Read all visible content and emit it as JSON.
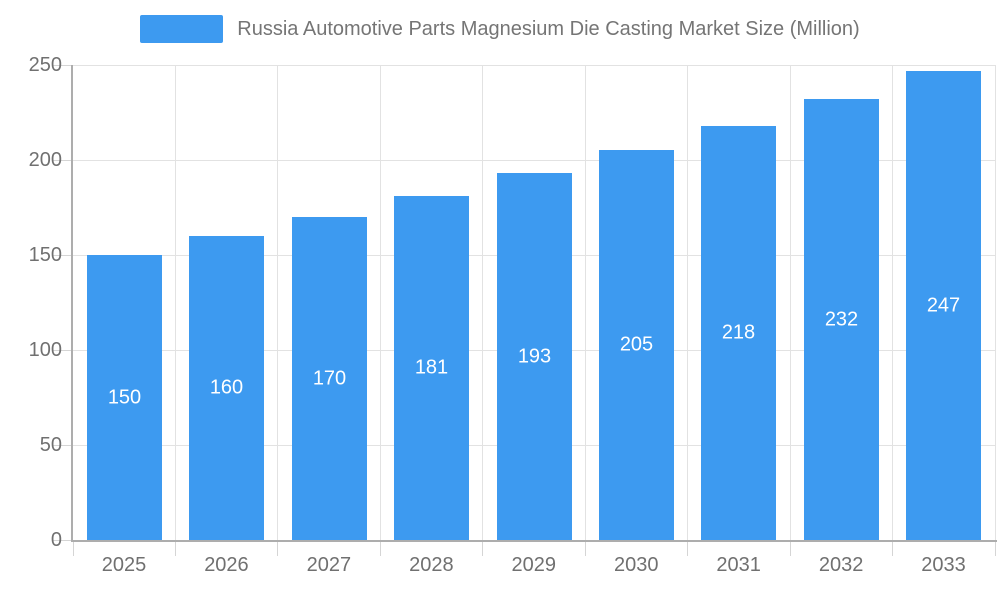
{
  "legend": {
    "swatch_icon": "legend-swatch",
    "label": "Russia Automotive Parts Magnesium Die Casting Market Size (Million)"
  },
  "colors": {
    "bar": "#3d9af0",
    "grid": "#e2e2e2",
    "axis": "#adadad",
    "tick": "#d5d5d5",
    "axis_text": "#707070",
    "bar_label_text": "#ffffff",
    "background": "#ffffff"
  },
  "chart_data": {
    "type": "bar",
    "title": "Russia Automotive Parts Magnesium Die Casting Market Size (Million)",
    "categories": [
      "2025",
      "2026",
      "2027",
      "2028",
      "2029",
      "2030",
      "2031",
      "2032",
      "2033"
    ],
    "values": [
      150,
      160,
      170,
      181,
      193,
      205,
      218,
      232,
      247
    ],
    "xlabel": "",
    "ylabel": "",
    "ylim": [
      0,
      250
    ],
    "yticks": [
      0,
      50,
      100,
      150,
      200,
      250
    ],
    "grid": true,
    "legend_position": "top",
    "bar_value_labels": "inside-center"
  }
}
